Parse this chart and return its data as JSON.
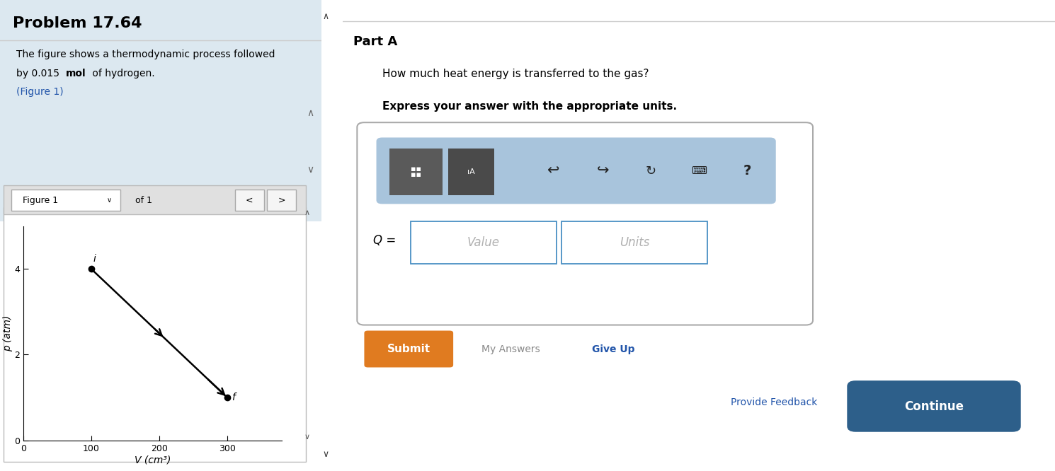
{
  "bg_color": "#f0f4f8",
  "left_panel_bg": "#dce8f0",
  "white_bg": "#ffffff",
  "problem_title": "Problem 17.64",
  "problem_text_line1": "The figure shows a thermodynamic process followed",
  "problem_text_line2": "by 0.015 mol of hydrogen.",
  "problem_text_link": "(Figure 1)",
  "figure_label": "Figure 1",
  "of_label": "of 1",
  "ylabel": "p (atm)",
  "xlabel": "V (cm³)",
  "yticks": [
    0,
    2,
    4
  ],
  "xticks": [
    0,
    100,
    200,
    300
  ],
  "xlim": [
    0,
    380
  ],
  "ylim": [
    0,
    5
  ],
  "point_i": [
    100,
    4
  ],
  "point_f": [
    300,
    1
  ],
  "label_i": "i",
  "label_f": "f",
  "part_a_title": "Part A",
  "part_a_question": "How much heat energy is transferred to the gas?",
  "part_a_bold": "Express your answer with the appropriate units.",
  "q_label": "Q =",
  "value_placeholder": "Value",
  "units_placeholder": "Units",
  "submit_btn": "Submit",
  "my_answers": "My Answers",
  "give_up": "Give Up",
  "provide_feedback": "Provide Feedback",
  "continue_btn": "Continue",
  "submit_color": "#e07b20",
  "continue_color": "#2d5f8a",
  "toolbar_bg": "#a8c4dc",
  "input_border": "#4a90c4",
  "divider_color": "#cccccc",
  "link_color": "#2255aa",
  "scrollbar_color": "#c8cdd2"
}
